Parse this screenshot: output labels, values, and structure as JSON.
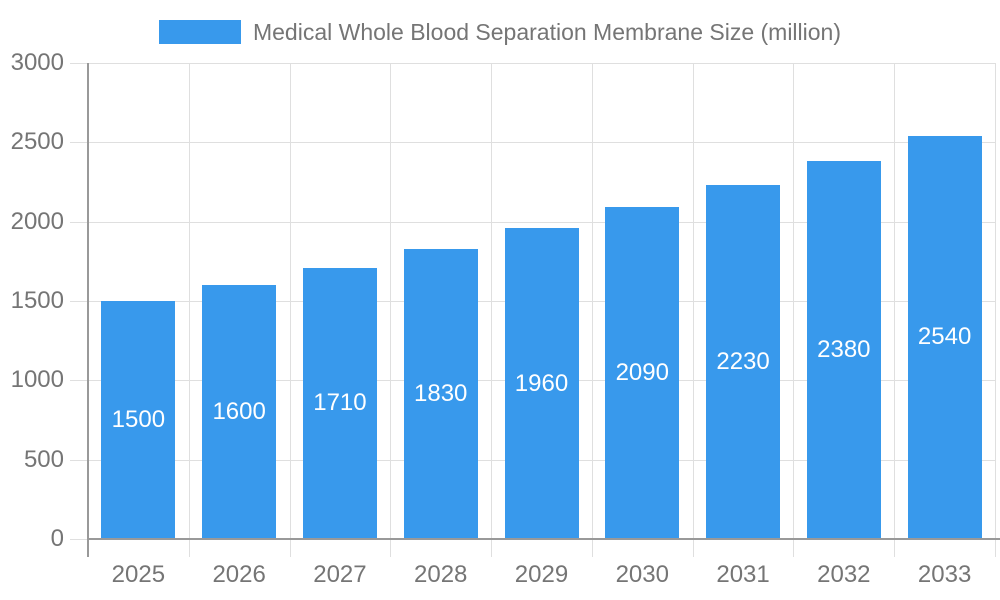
{
  "chart_data": {
    "type": "bar",
    "title": "Medical Whole Blood Separation Membrane Size (million)",
    "categories": [
      "2025",
      "2026",
      "2027",
      "2028",
      "2029",
      "2030",
      "2031",
      "2032",
      "2033"
    ],
    "values": [
      1500,
      1600,
      1710,
      1830,
      1960,
      2090,
      2230,
      2380,
      2540
    ],
    "xlabel": "",
    "ylabel": "",
    "ylim": [
      0,
      3000
    ],
    "y_ticks": [
      0,
      500,
      1000,
      1500,
      2000,
      2500,
      3000
    ],
    "grid": true,
    "legend_position": "top-center",
    "bar_label_position": "inside-middle",
    "colors": {
      "bar": "#3899EC",
      "bar_label_text": "#FFFFFF",
      "axis_text": "#757575",
      "title_text": "#757575",
      "gridline": "#DFDFDF",
      "axis_line": "#999999",
      "background": "#FFFFFF"
    }
  }
}
